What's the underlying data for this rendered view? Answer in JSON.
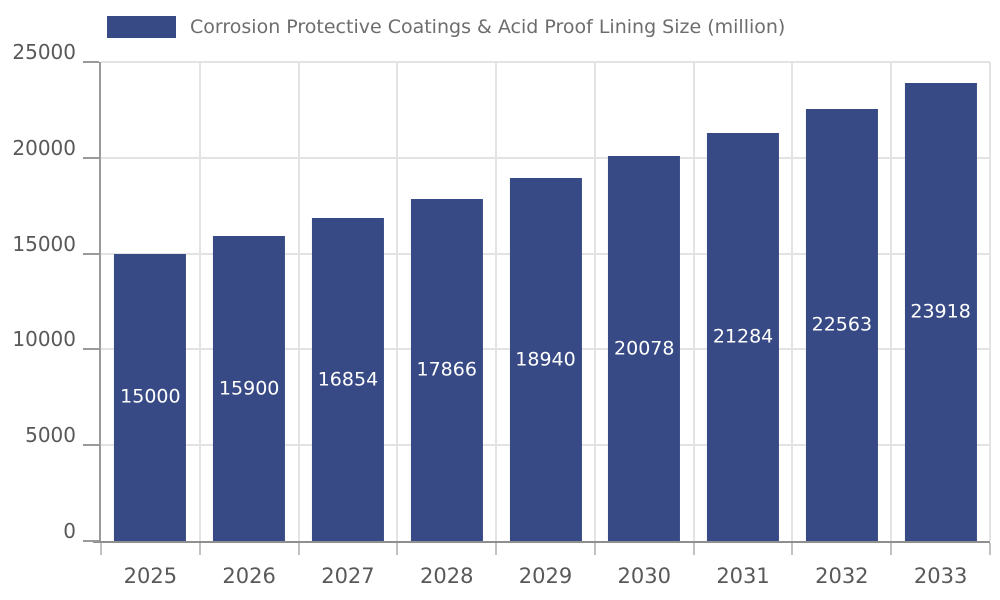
{
  "legend": {
    "label": "Corrosion Protective Coatings & Acid Proof Lining Size (million)"
  },
  "chart_data": {
    "type": "bar",
    "title": "Corrosion Protective Coatings & Acid Proof Lining Size (million)",
    "categories": [
      "2025",
      "2026",
      "2027",
      "2028",
      "2029",
      "2030",
      "2031",
      "2032",
      "2033"
    ],
    "values": [
      15000,
      15900,
      16854,
      17866,
      18940,
      20078,
      21284,
      22563,
      23918
    ],
    "xlabel": "",
    "ylabel": "",
    "ylim": [
      0,
      25000
    ],
    "yticks": [
      0,
      5000,
      10000,
      15000,
      20000,
      25000
    ],
    "grid": true,
    "legend_position": "top-left",
    "bar_width_fraction": 0.73,
    "value_labels_inside": true
  },
  "colors": {
    "bar": "#384a85",
    "bar_value_text": "#ffffff",
    "gridline": "#e3e3e3",
    "axis_line": "#9a9a9a",
    "tick_text": "#595959",
    "legend_text": "#6d6d6d",
    "background": "#ffffff"
  }
}
